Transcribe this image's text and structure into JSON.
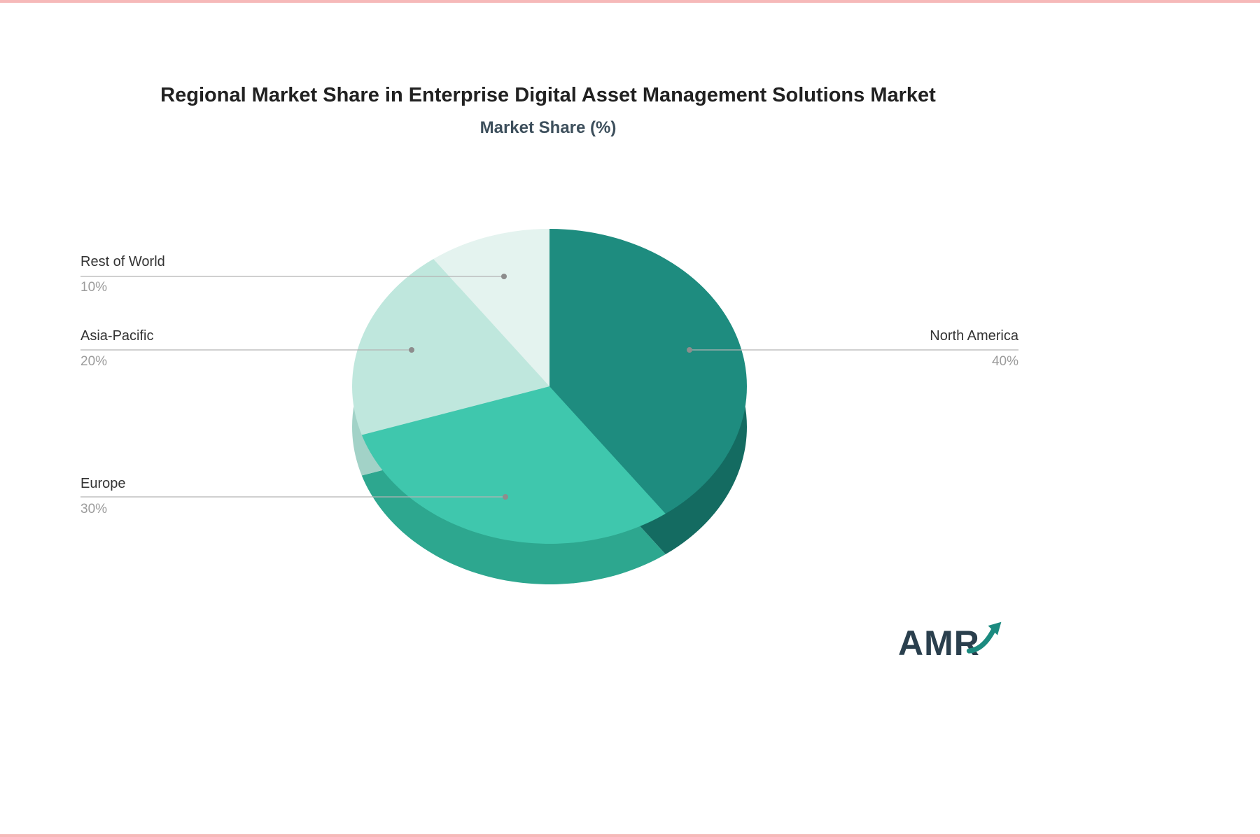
{
  "chart_data": {
    "type": "pie",
    "style": "3d",
    "title": "Regional Market Share in Enterprise Digital Asset Management Solutions Market",
    "subtitle": "Market Share (%)",
    "unit": "%",
    "start_angle_deg": 0,
    "direction": "clockwise",
    "legend_position": "none",
    "label_line_color": "#b3b3b3",
    "label_dot_color": "#8d8d8d",
    "label_text_color": "#333333",
    "value_text_color": "#9b9b9b",
    "slices": [
      {
        "label": "North America",
        "value": 40,
        "display": "40%",
        "color": "#1e8c7f",
        "depth_color": "#146b61"
      },
      {
        "label": "Europe",
        "value": 30,
        "display": "30%",
        "color": "#3fc7ad",
        "depth_color": "#2da78f"
      },
      {
        "label": "Asia-Pacific",
        "value": 20,
        "display": "20%",
        "color": "#bfe7dd",
        "depth_color": "#a2d2c7"
      },
      {
        "label": "Rest of World",
        "value": 10,
        "display": "10%",
        "color": "#e4f3ef",
        "depth_color": "#c9e5df"
      }
    ]
  },
  "branding": {
    "logo_text": "AMR",
    "logo_color": "#2a3f4d",
    "arrow_color": "#1b8a7f"
  }
}
